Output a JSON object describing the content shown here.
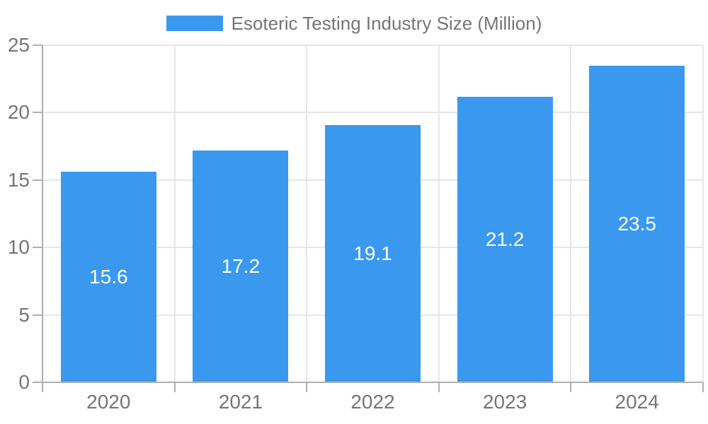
{
  "chart_data": {
    "type": "bar",
    "title": "",
    "legend": {
      "position": "top-center",
      "entries": [
        {
          "label": "Esoteric Testing Industry Size (Million)",
          "color": "#3a99ee"
        }
      ]
    },
    "categories": [
      "2020",
      "2021",
      "2022",
      "2023",
      "2024"
    ],
    "series": [
      {
        "name": "Esoteric Testing Industry Size (Million)",
        "color": "#3a99ee",
        "values": [
          15.6,
          17.2,
          19.1,
          21.2,
          23.5
        ],
        "value_labels": [
          "15.6",
          "17.2",
          "19.1",
          "21.2",
          "23.5"
        ]
      }
    ],
    "ylim": [
      0,
      25
    ],
    "yticks": [
      0,
      5,
      10,
      15,
      20,
      25
    ],
    "grid": true,
    "colors": {
      "bar": "#3a99ee",
      "grid": "#e6e6e6",
      "axis": "#b0b0b0",
      "tick_label": "#757575",
      "value_label": "#ffffff",
      "background": "#ffffff"
    }
  }
}
